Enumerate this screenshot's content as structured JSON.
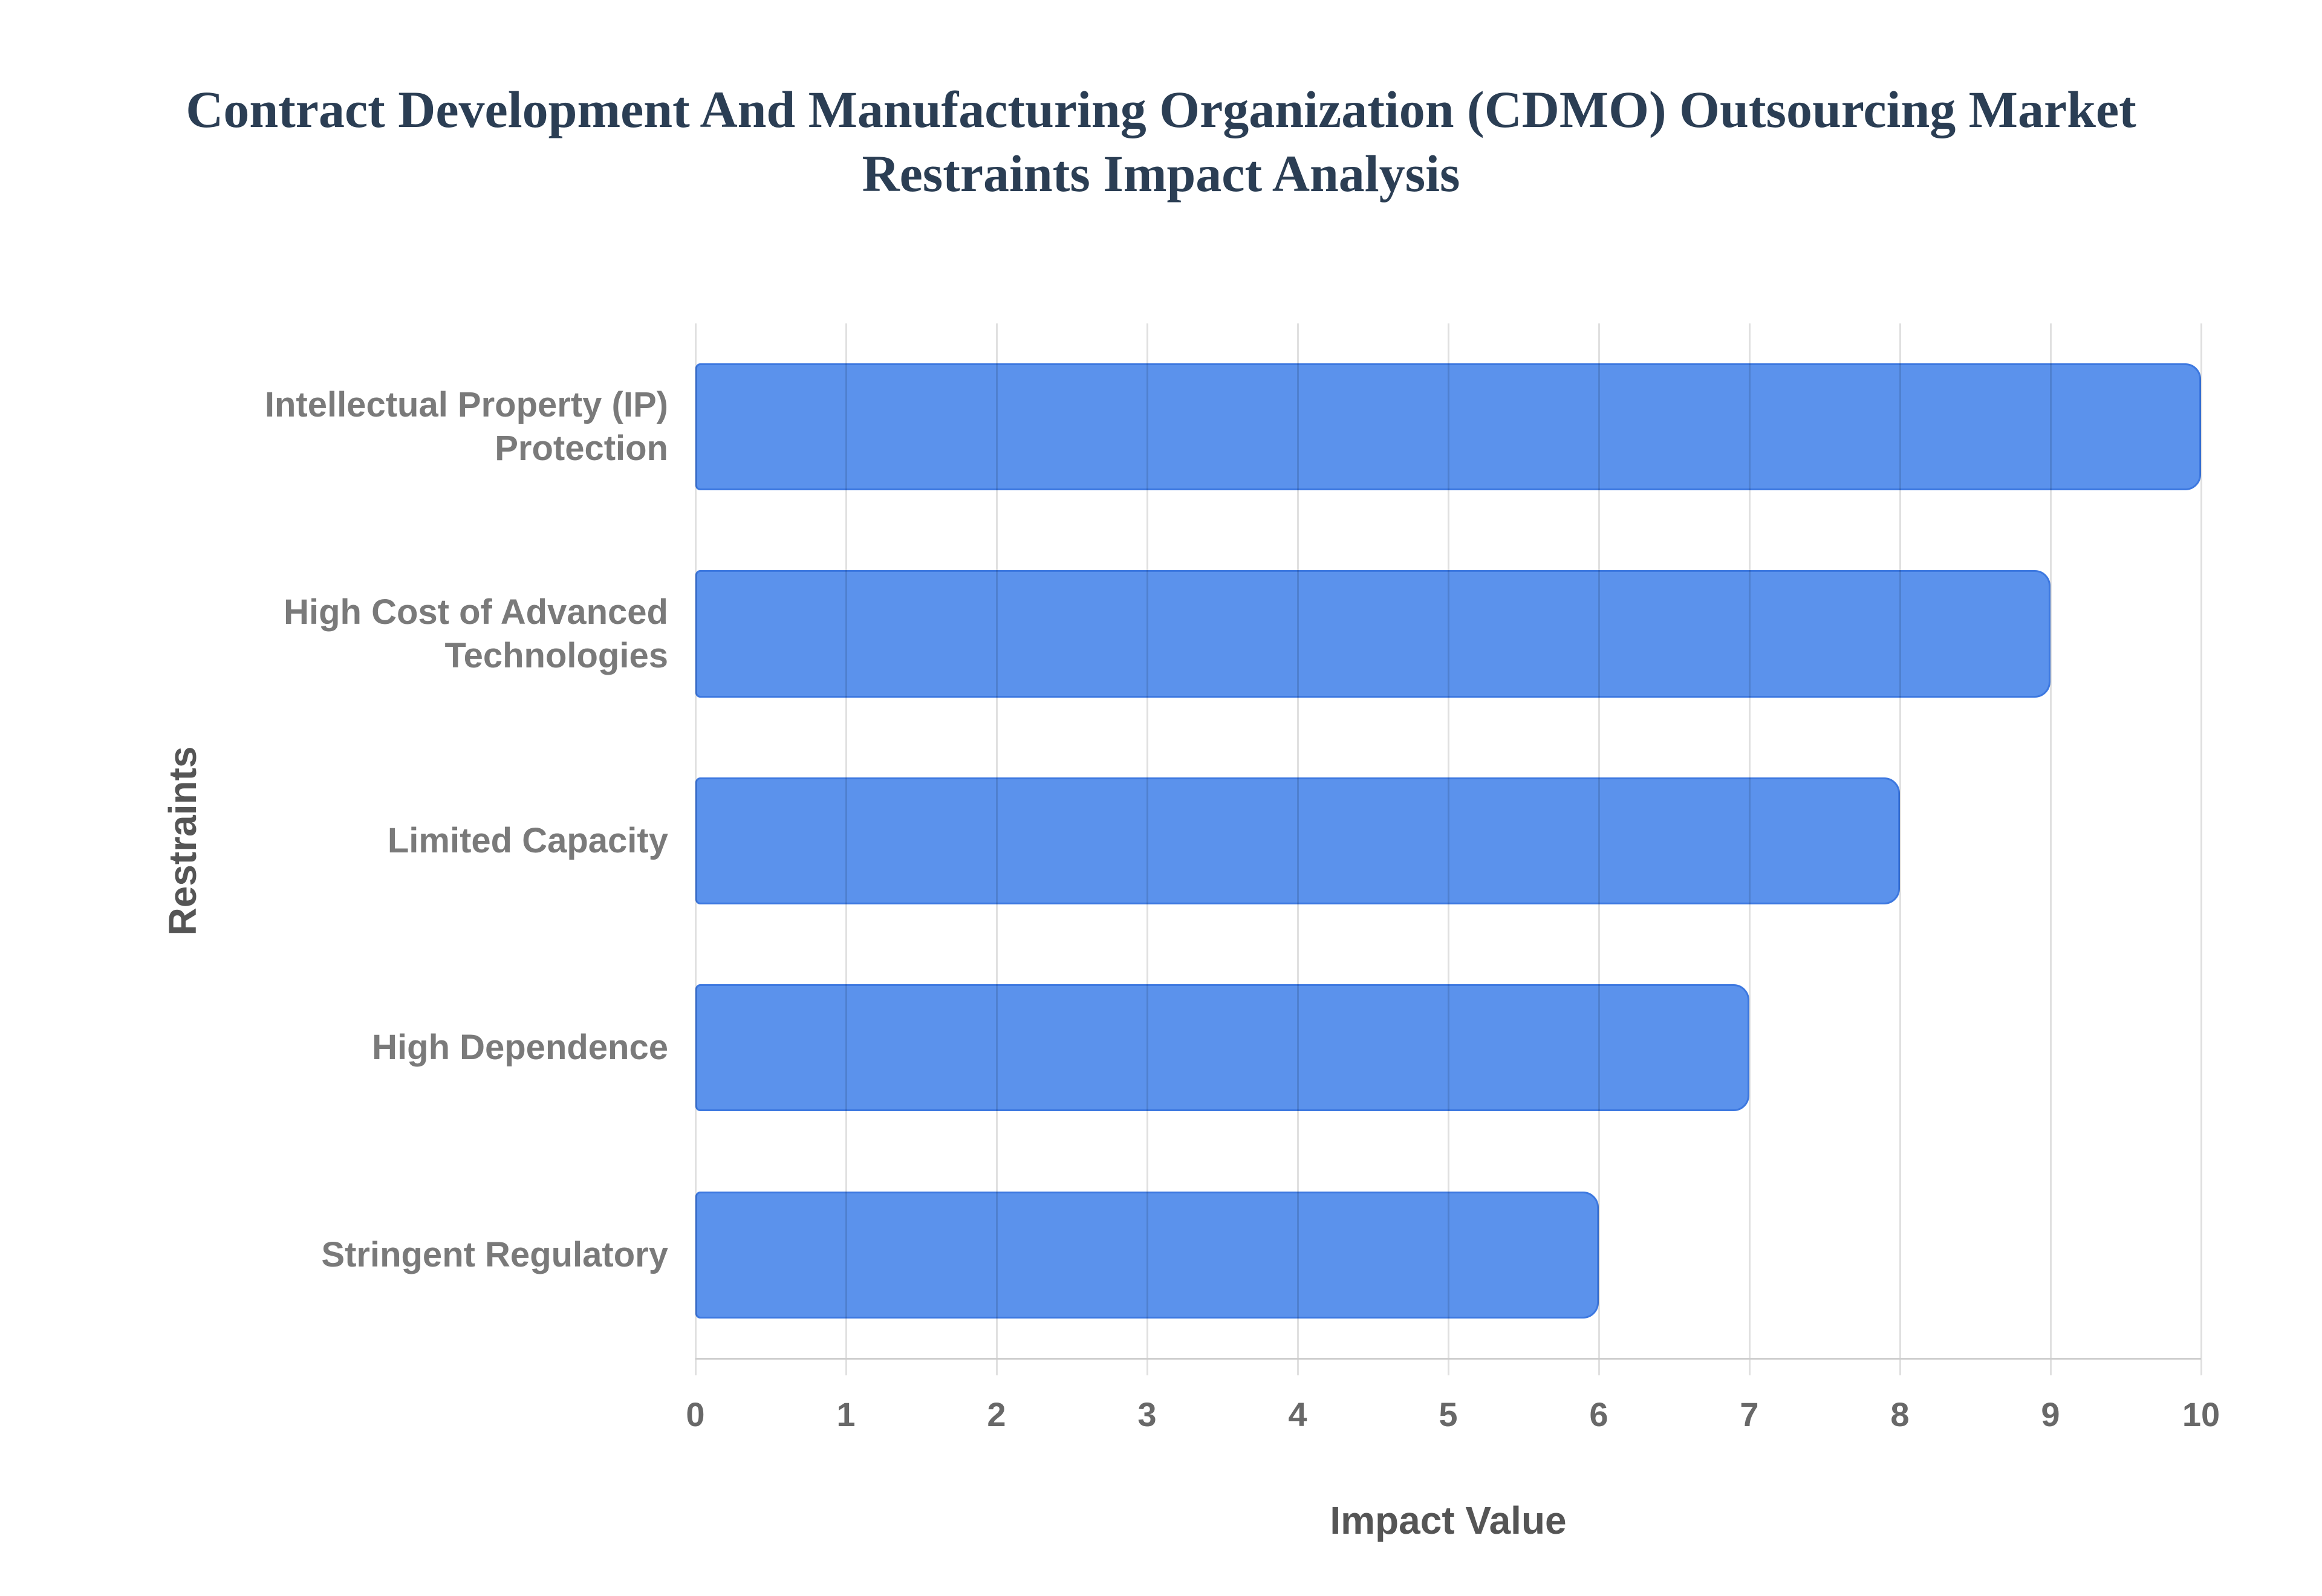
{
  "title": {
    "line1": "Contract Development And Manufacturing Organization (CDMO) Outsourcing Market",
    "line2": "Restraints Impact Analysis"
  },
  "chart_data": {
    "type": "bar",
    "orientation": "horizontal",
    "title": "Contract Development And Manufacturing Organization (CDMO) Outsourcing Market Restraints Impact Analysis",
    "categories": [
      "Intellectual Property (IP)\nProtection",
      "High Cost of Advanced\nTechnologies",
      "Limited Capacity",
      "High Dependence",
      "Stringent Regulatory"
    ],
    "values": [
      10,
      9,
      8,
      7,
      6
    ],
    "xlabel": "Impact Value",
    "ylabel": "Restraints",
    "xlim": [
      0,
      10
    ],
    "xticks": [
      0,
      1,
      2,
      3,
      4,
      5,
      6,
      7,
      8,
      9,
      10
    ],
    "grid": true,
    "legend": false,
    "bar_color": "#5b92ec",
    "bar_border_color": "#3d78e0",
    "title_color": "#2b3e54",
    "axis_title_color": "#555555",
    "category_label_color": "#7a7a7a",
    "tick_label_color": "#686868"
  }
}
